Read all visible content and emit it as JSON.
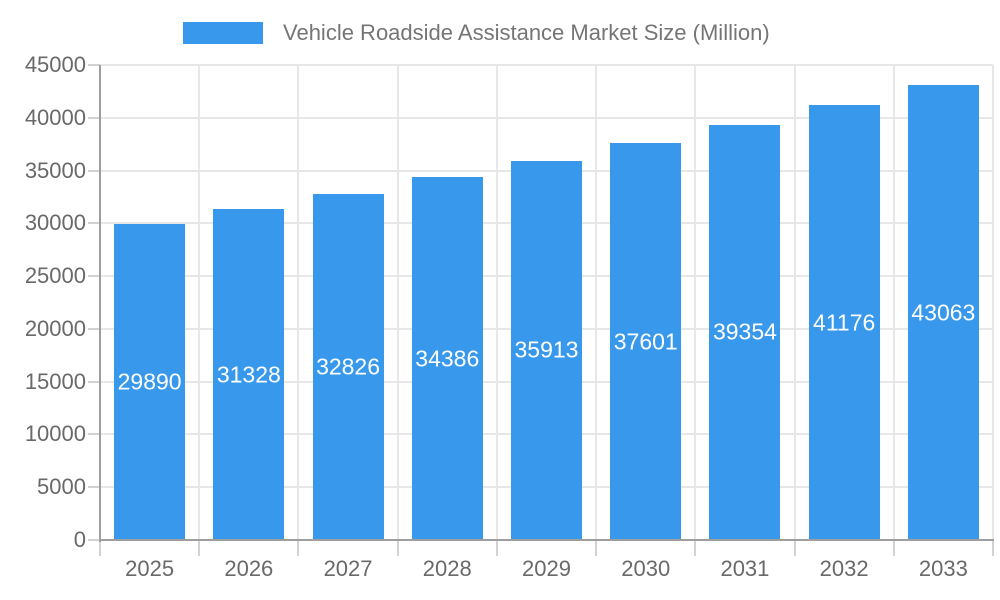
{
  "legend": {
    "position": "top"
  },
  "colors": {
    "bar": "#3898ec",
    "axis_line": "#9e9e9e",
    "grid_line": "#e7e7e7",
    "tick_mark": "#d2d2d2",
    "tick_label_text": "#696969",
    "legend_text": "#757575",
    "data_label_text": "#ffffff",
    "background": "#ffffff"
  },
  "chart_data": {
    "type": "bar",
    "title": "Vehicle Roadside Assistance Market Size (Million)",
    "categories": [
      "2025",
      "2026",
      "2027",
      "2028",
      "2029",
      "2030",
      "2031",
      "2032",
      "2033"
    ],
    "values": [
      29890,
      31328,
      32826,
      34386,
      35913,
      37601,
      39354,
      41176,
      43063
    ],
    "data_labels": [
      "29890",
      "31328",
      "32826",
      "34386",
      "35913",
      "37601",
      "39354",
      "41176",
      "43063"
    ],
    "xlabel": "",
    "ylabel": "",
    "ylim": [
      0,
      45000
    ],
    "yticks": [
      0,
      5000,
      10000,
      15000,
      20000,
      25000,
      30000,
      35000,
      40000,
      45000
    ],
    "ytick_labels": [
      "0",
      "5000",
      "10000",
      "15000",
      "20000",
      "25000",
      "30000",
      "35000",
      "40000",
      "45000"
    ],
    "grid": true,
    "legend_position": "top"
  }
}
